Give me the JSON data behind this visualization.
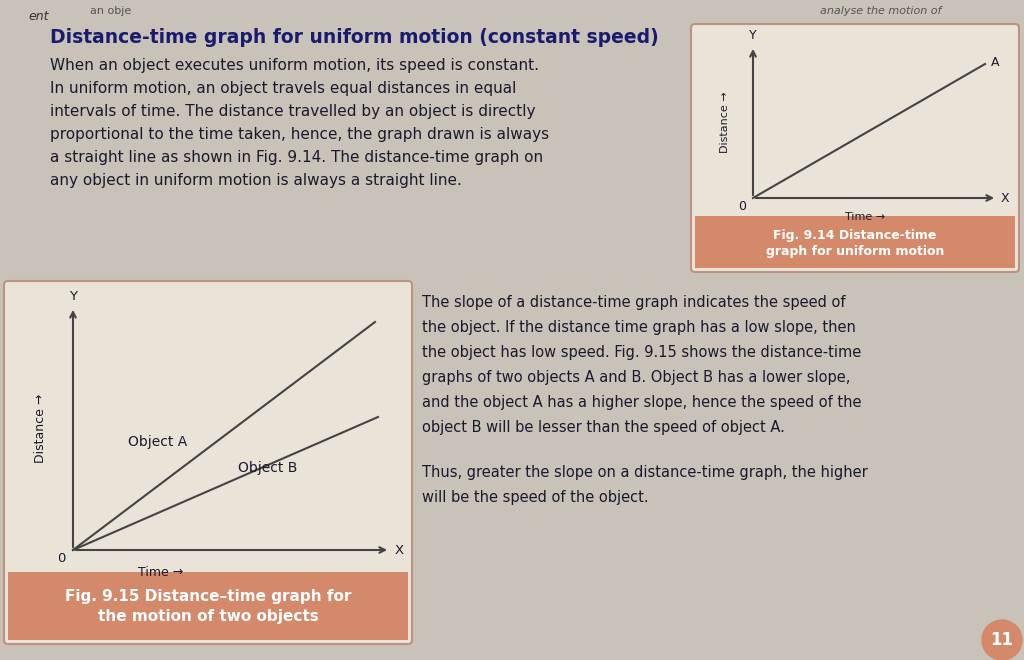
{
  "bg_color": "#c8c2b8",
  "fig_bg_color": "#ddd8d0",
  "title": "Distance-time graph for uniform motion (constant speed)",
  "body_text": [
    "When an object executes uniform motion, its speed is constant.",
    "In uniform motion, an object travels equal distances in equal",
    "intervals of time. The distance travelled by an object is directly",
    "proportional to the time taken, hence, the graph drawn is always",
    "a straight line as shown in Fig. 9.14. The distance-time graph on",
    "any object in uniform motion is always a straight line."
  ],
  "right_text_1": [
    "The slope of a distance-time graph indicates the speed of",
    "the object. If the distance time graph has a low slope, then",
    "the object has low speed. Fig. 9.15 shows the distance-time",
    "graphs of two objects A and B. Object B has a lower slope,",
    "and the object A has a higher slope, hence the speed of the",
    "object B will be lesser than the speed of object A."
  ],
  "right_text_2": [
    "Thus, greater the slope on a distance-time graph, the higher",
    "will be the speed of the object."
  ],
  "fig914_caption_line1": "Fig. 9.14 Distance-time",
  "fig914_caption_line2": "graph for uniform motion",
  "fig915_caption_line1": "Fig. 9.15 Distance–time graph for",
  "fig915_caption_line2": "the motion of two objects",
  "caption_bg_color": "#d4896b",
  "graph_line_color": "#444444",
  "text_color": "#1a1a2e",
  "title_color": "#1a1a6e",
  "top_left_text": "ent",
  "top_left_text2": "an obje",
  "top_right_text": "analyse the motion of",
  "page_number": "11",
  "page_number_color": "#d4896b"
}
